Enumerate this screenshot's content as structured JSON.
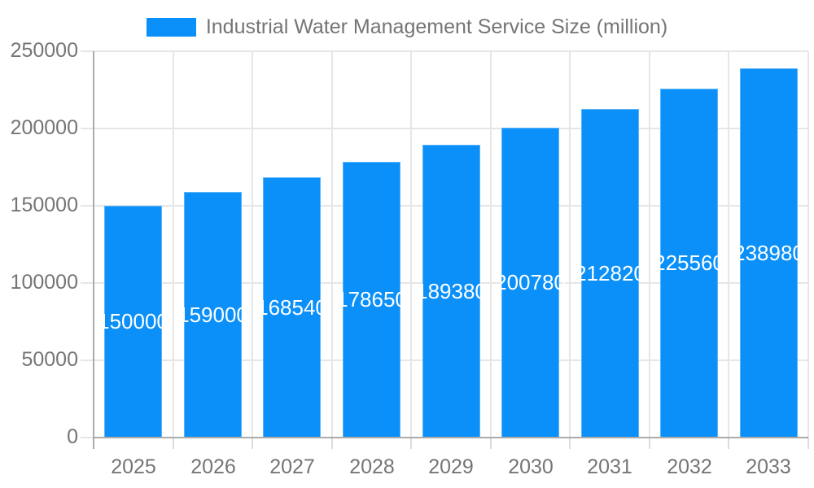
{
  "chart_data": {
    "type": "bar",
    "title": "Industrial Water Management Service Size (million)",
    "categories": [
      "2025",
      "2026",
      "2027",
      "2028",
      "2029",
      "2030",
      "2031",
      "2032",
      "2033"
    ],
    "values": [
      150000,
      159000,
      168540,
      178650,
      189380,
      200780,
      212820,
      225560,
      238980
    ],
    "xlabel": "",
    "ylabel": "",
    "ylim": [
      0,
      250000
    ],
    "yticks": [
      0,
      50000,
      100000,
      150000,
      200000,
      250000
    ],
    "grid": true,
    "legend_position": "top",
    "bar_labels_inside": true
  },
  "colors": {
    "bar_fill": "#0a90f8",
    "bar_edge": "#5cb4f9",
    "grid": "#e6e6e6",
    "axis": "#ababab",
    "tick": "#dcdcdc",
    "tick_text": "#757575",
    "value_label": "#ffffff",
    "background": "#ffffff"
  }
}
